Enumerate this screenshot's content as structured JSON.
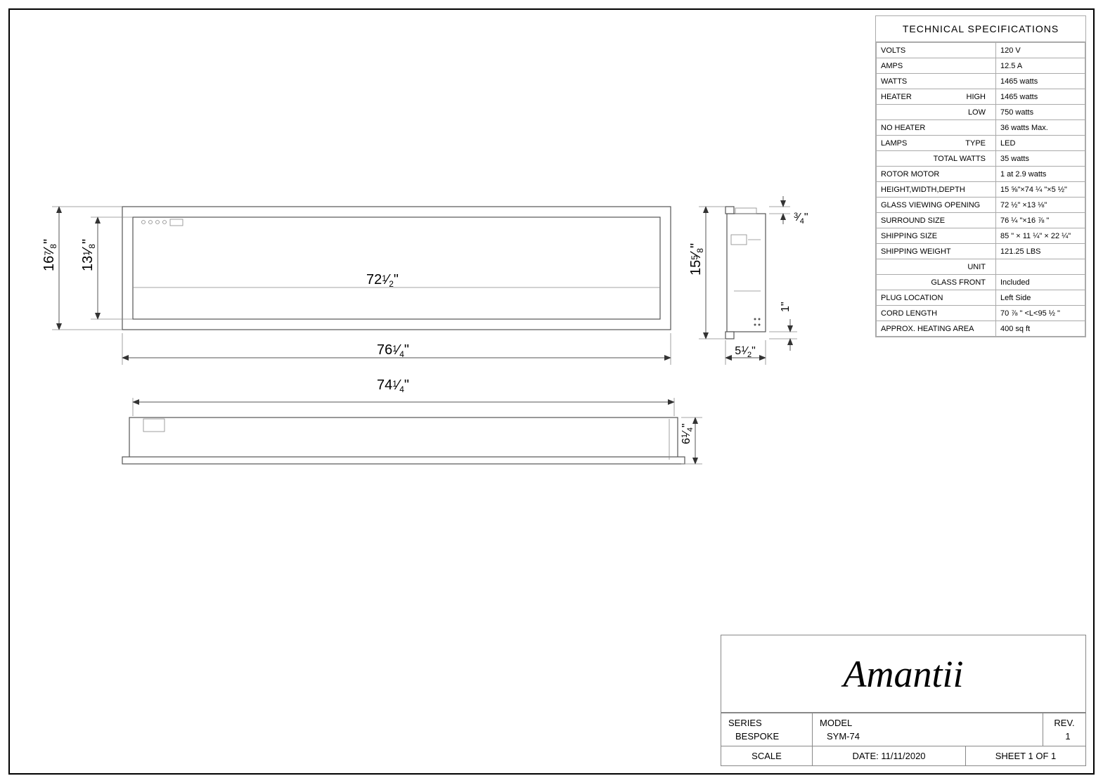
{
  "spec": {
    "title": "TECHNICAL SPECIFICATIONS",
    "rows": [
      {
        "label": "VOLTS",
        "value": "120  V"
      },
      {
        "label": "AMPS",
        "value": "12.5 A"
      },
      {
        "label": "WATTS",
        "value": "1465  watts"
      },
      {
        "label": "HEATER",
        "sub": "HIGH",
        "value": "1465 watts"
      },
      {
        "label": "",
        "sub": "LOW",
        "value": "750 watts"
      },
      {
        "label": "NO HEATER",
        "value": "36 watts Max."
      },
      {
        "label": "LAMPS",
        "sub": "TYPE",
        "value": "LED"
      },
      {
        "label": "",
        "sub": "TOTAL WATTS",
        "value": "35 watts"
      },
      {
        "label": "ROTOR MOTOR",
        "value": "1 at 2.9 watts"
      },
      {
        "label": "HEIGHT,WIDTH,DEPTH",
        "value": "15 ⅝\"×74 ¼ \"×5 ½\""
      },
      {
        "label": "GLASS VIEWING OPENING",
        "value": "72 ½\" ×13 ⅛\""
      },
      {
        "label": "SURROUND SIZE",
        "value": "76 ¼ \"×16 ⅞ \""
      },
      {
        "label": "SHIPPING SIZE",
        "value": "85  \" × 11 ¼\" × 22 ¼\""
      },
      {
        "label": "SHIPPING WEIGHT",
        "value": "121.25 LBS"
      },
      {
        "label": "",
        "sub": "UNIT",
        "value": ""
      },
      {
        "label": "",
        "sub": "GLASS FRONT",
        "value": "Included"
      },
      {
        "label": "PLUG LOCATION",
        "value": "Left Side"
      },
      {
        "label": "CORD LENGTH",
        "value": "70 ⅞ \" <L<95  ½ \""
      },
      {
        "label": "APPROX. HEATING AREA",
        "value": "400 sq ft"
      }
    ]
  },
  "titleblock": {
    "logo": "Amantii",
    "series_label": "SERIES",
    "series_value": "BESPOKE",
    "model_label": "MODEL",
    "model_value": "SYM-74",
    "rev_label": "REV.",
    "rev_value": "1",
    "scale_label": "SCALE",
    "date_label": "DATE:",
    "date_value": "11/11/2020",
    "sheet_label": "SHEET",
    "sheet_value": "1 OF 1"
  },
  "dimensions": {
    "front_height_outer": "16⅞\"",
    "front_height_inner": "13⅛\"",
    "front_width_inner": "72½\"",
    "front_width_outer": "76¼\"",
    "side_height": "15⅝\"",
    "side_top_offset": "¾\"",
    "side_bottom_offset": "1\"",
    "side_width": "5½\"",
    "plan_width": "74¼\"",
    "plan_height": "6¼\""
  },
  "styling": {
    "line_color": "#555555",
    "dim_color": "#333333",
    "background": "#ffffff",
    "font_family": "Arial",
    "dim_fontsize_pt": 16
  }
}
